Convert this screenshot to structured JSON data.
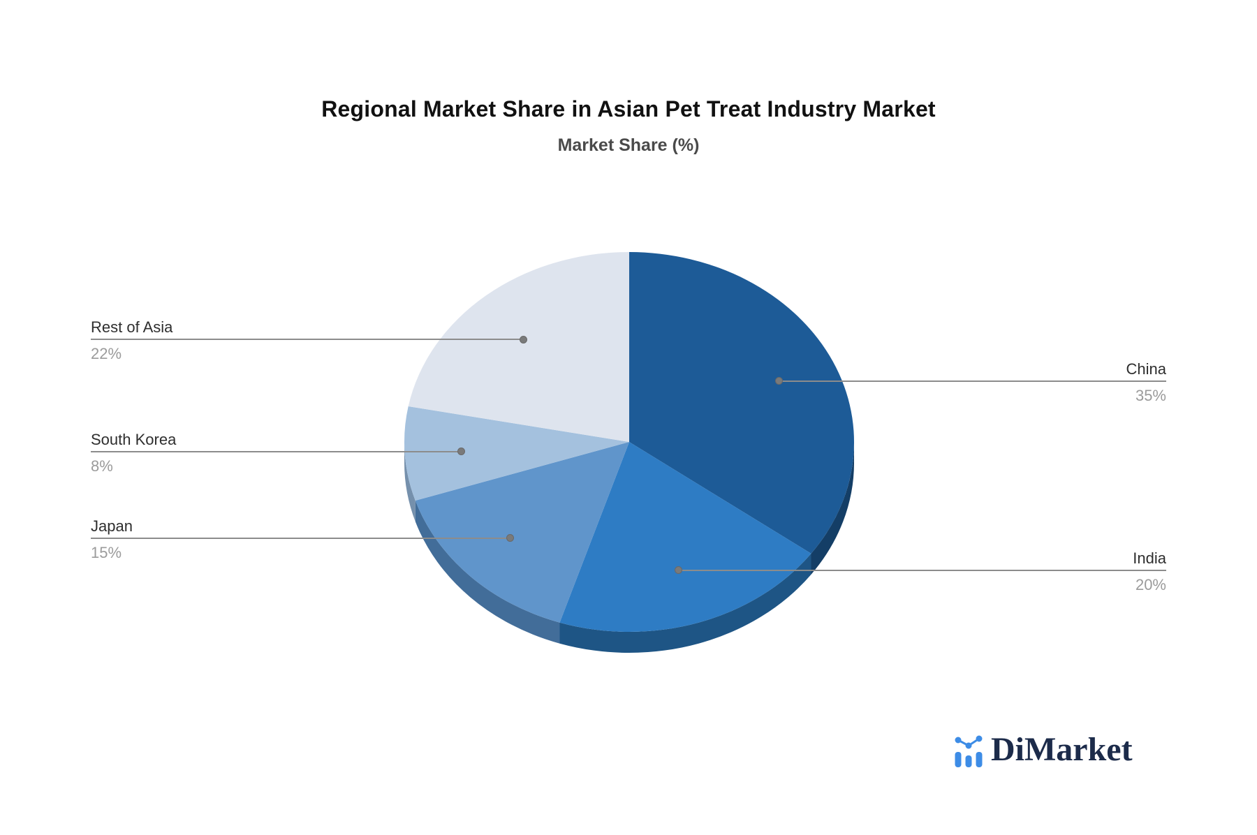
{
  "title": "Regional Market Share in Asian Pet Treat Industry Market",
  "subtitle": "Market Share (%)",
  "chart_data": {
    "type": "pie",
    "title": "Regional Market Share in Asian Pet Treat Industry Market",
    "subtitle": "Market Share (%)",
    "unit": "%",
    "style": "3d-pie",
    "start_angle_deg": 0,
    "direction": "clockwise",
    "legend": "none",
    "categories": [
      "China",
      "India",
      "Japan",
      "South Korea",
      "Rest of Asia"
    ],
    "values": [
      35,
      20,
      15,
      8,
      22
    ],
    "slices": [
      {
        "name": "China",
        "value": 35,
        "value_label": "35%",
        "color": "#1d5b97",
        "rim_color": "#143e66"
      },
      {
        "name": "India",
        "value": 20,
        "value_label": "20%",
        "color": "#2e7cc4",
        "rim_color": "#1e5585"
      },
      {
        "name": "Japan",
        "value": 15,
        "value_label": "15%",
        "color": "#6095cb",
        "rim_color": "#426d99"
      },
      {
        "name": "South Korea",
        "value": 8,
        "value_label": "8%",
        "color": "#a4c1de",
        "rim_color": "#7590ac"
      },
      {
        "name": "Rest of Asia",
        "value": 22,
        "value_label": "22%",
        "color": "#dee4ee",
        "rim_color": "#a8b6c8"
      }
    ],
    "label_text_color": "#2e2e2e",
    "label_value_color": "#9b9b9b",
    "leader_line_color": "#8c8c8c"
  },
  "logo": {
    "text": "DiMarket",
    "icon": "bar-line-chart-icon",
    "icon_color": "#3d8ce6",
    "text_color": "#1c2b4a"
  }
}
